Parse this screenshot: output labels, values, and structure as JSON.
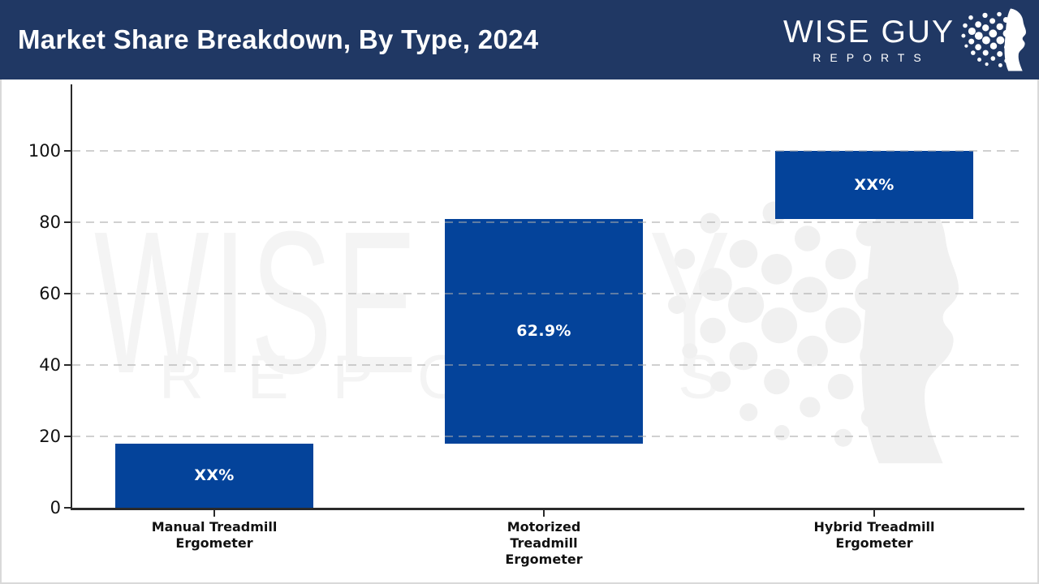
{
  "header": {
    "title": "Market Share Breakdown, By Type, 2024",
    "logo": {
      "name_line": "WISE GUY",
      "reports_line": "REPORTS"
    }
  },
  "watermark": {
    "name_line": "WISE GUY",
    "reports_line": "REPORTS"
  },
  "colors": {
    "header_bg": "#203864",
    "bar": "#04439a",
    "bar_label": "#ffffff",
    "axis": "#2a2a2a",
    "grid_dash": "#dcdcdc",
    "tick_text": "#111111",
    "watermark": "#f4f4f4",
    "page_border": "#d9d9d9"
  },
  "chart_data": {
    "type": "bar",
    "subtype": "floating-segment-waterfall",
    "title": "Market Share Breakdown, By Type, 2024",
    "xlabel": "",
    "ylabel": "",
    "categories": [
      [
        "Manual Treadmill",
        "Ergometer"
      ],
      [
        "Motorized",
        "Treadmill",
        "Ergometer"
      ],
      [
        "Hybrid Treadmill",
        "Ergometer"
      ]
    ],
    "segments": [
      {
        "label": "XX%",
        "start": 0,
        "end": 18
      },
      {
        "label": "62.9%",
        "start": 18,
        "end": 80.9
      },
      {
        "label": "XX%",
        "start": 80.9,
        "end": 100
      }
    ],
    "yticks": [
      0,
      20,
      40,
      60,
      80,
      100
    ],
    "ylim": [
      0,
      105
    ],
    "grid": "horizontal-dashed",
    "legend_position": "none"
  }
}
